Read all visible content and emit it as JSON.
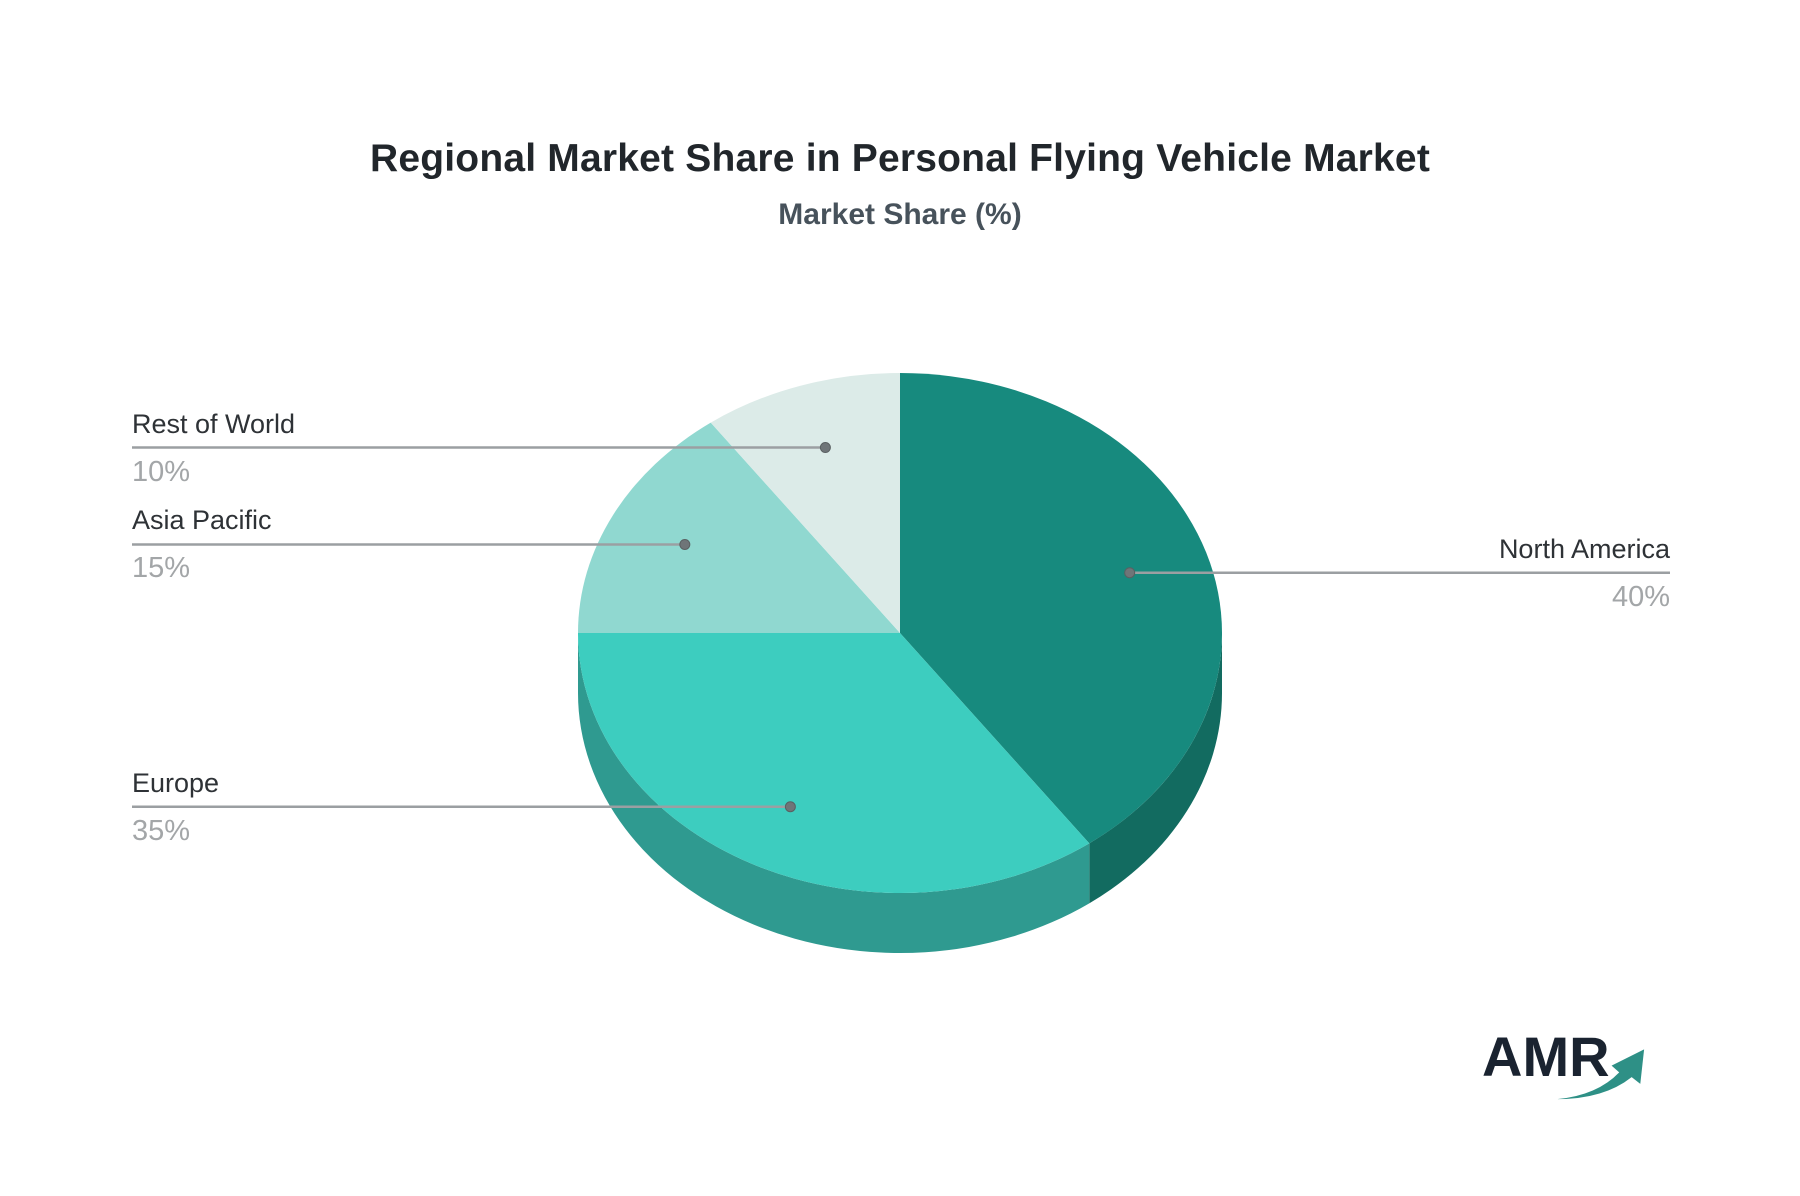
{
  "header": {
    "title": "Regional Market Share in Personal Flying Vehicle Market",
    "subtitle": "Market Share (%)"
  },
  "branding": {
    "logo_text": "AMR",
    "logo_text_color": "#1A2330",
    "logo_arrow_color": "#2E9086"
  },
  "chart_data": {
    "type": "pie",
    "style": "3d",
    "title": "Regional Market Share in Personal Flying Vehicle Market",
    "subtitle": "Market Share (%)",
    "unit": "percent",
    "legend": "none",
    "direction": "clockwise",
    "start_angle_deg": -90,
    "categories": [
      "North America",
      "Europe",
      "Asia Pacific",
      "Rest of World"
    ],
    "values": [
      40,
      35,
      15,
      10
    ],
    "slices": [
      {
        "label": "North America",
        "value": 40,
        "value_text": "40%",
        "color": "#178A7E",
        "side_color": "#126B60",
        "callout_side": "right"
      },
      {
        "label": "Europe",
        "value": 35,
        "value_text": "35%",
        "color": "#3DCDBF",
        "side_color": "#2F9A90",
        "callout_side": "left"
      },
      {
        "label": "Asia Pacific",
        "value": 15,
        "value_text": "15%",
        "color": "#90D8D0",
        "side_color": "#73B8AF",
        "callout_side": "left"
      },
      {
        "label": "Rest of World",
        "value": 10,
        "value_text": "10%",
        "color": "#DCEBE8",
        "side_color": "#C4DAD6",
        "callout_side": "left"
      }
    ],
    "label_color": "#2E3236",
    "value_color": "#A3A6A8",
    "leader_line_color": "#9B9FA2",
    "leader_dot_color": "#6F7578"
  }
}
